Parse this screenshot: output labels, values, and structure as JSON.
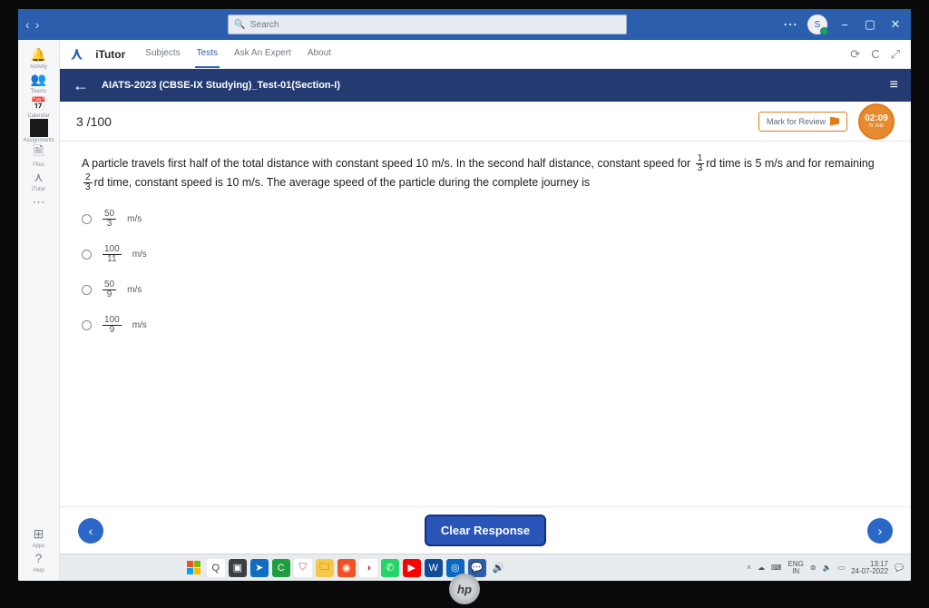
{
  "titlebar": {
    "search_placeholder": "Search",
    "avatar_initial": "S",
    "minimize": "−",
    "maximize": "▢",
    "close": "✕"
  },
  "sidebar": {
    "items": [
      {
        "icon": "🔔",
        "label": "Activity"
      },
      {
        "icon": "👥",
        "label": "Teams"
      },
      {
        "icon": "📅",
        "label": "Calendar"
      },
      {
        "icon": "■",
        "label": "Assignments"
      },
      {
        "icon": "🗎",
        "label": "Files"
      },
      {
        "icon": "⋏",
        "label": "iTutor"
      },
      {
        "icon": "⋯",
        "label": ""
      }
    ],
    "bottom": [
      {
        "icon": "⊞",
        "label": "Apps"
      },
      {
        "icon": "?",
        "label": "Help"
      }
    ]
  },
  "tabs": {
    "brand": "iTutor",
    "items": [
      {
        "label": "Subjects",
        "active": false
      },
      {
        "label": "Tests",
        "active": true
      },
      {
        "label": "Ask An Expert",
        "active": false
      },
      {
        "label": "About",
        "active": false
      }
    ],
    "right_icons": [
      "⟳",
      "C",
      "⤢"
    ]
  },
  "darkbar": {
    "title": "AIATS-2023 (CBSE-IX Studying)_Test-01(Section-I)"
  },
  "question": {
    "counter": "3 /100",
    "mark_review": "Mark for Review",
    "timer": "02:09",
    "timer_sub": "hr  min",
    "text_parts": {
      "p1": "A particle travels first half of the total distance with constant speed 10 m/s. In the second half distance, constant speed for ",
      "f1n": "1",
      "f1d": "3",
      "f1suf": "rd",
      "p2": " time is 5 m/s and for remaining ",
      "f2n": "2",
      "f2d": "3",
      "f2suf": "rd",
      "p3": "time, constant speed is 10 m/s. The average speed of the particle during the complete journey is"
    },
    "options": [
      {
        "num": "50",
        "den": "3",
        "unit": "m/s"
      },
      {
        "num": "100",
        "den": "11",
        "unit": "m/s"
      },
      {
        "num": "50",
        "den": "9",
        "unit": "m/s"
      },
      {
        "num": "100",
        "den": "9",
        "unit": "m/s"
      }
    ],
    "clear": "Clear Response"
  },
  "taskbar": {
    "icons": [
      {
        "bg": "transparent",
        "glyph": "win"
      },
      {
        "bg": "#ffffff",
        "color": "#444",
        "glyph": "Q"
      },
      {
        "bg": "#3b3f44",
        "color": "#fff",
        "glyph": "▣"
      },
      {
        "bg": "#0f6cbf",
        "color": "#fff",
        "glyph": "➤"
      },
      {
        "bg": "#1e9e3e",
        "color": "#fff",
        "glyph": "C"
      },
      {
        "bg": "#ffffff",
        "color": "#d44",
        "glyph": "⛉"
      },
      {
        "bg": "#f7c948",
        "color": "#7a5200",
        "glyph": "🗀"
      },
      {
        "bg": "#f25022",
        "color": "#fff",
        "glyph": "◉"
      },
      {
        "bg": "#ffffff",
        "color": "#d33",
        "glyph": "◑"
      },
      {
        "bg": "#25d366",
        "color": "#fff",
        "glyph": "✆"
      },
      {
        "bg": "#ff0000",
        "color": "#fff",
        "glyph": "▶"
      },
      {
        "bg": "#0f4c9c",
        "color": "#fff",
        "glyph": "W"
      },
      {
        "bg": "#0a66c2",
        "color": "#fff",
        "glyph": "◎"
      },
      {
        "bg": "#2b5fad",
        "color": "#fff",
        "glyph": "💬"
      },
      {
        "bg": "transparent",
        "color": "#4a6",
        "glyph": "🔊"
      }
    ],
    "tray": {
      "lang1": "ENG",
      "lang2": "IN",
      "time": "13:17",
      "date": "24-07-2022"
    }
  },
  "colors": {
    "primary": "#2b5fad",
    "darkbar": "#243b72",
    "accent": "#e37a18"
  }
}
